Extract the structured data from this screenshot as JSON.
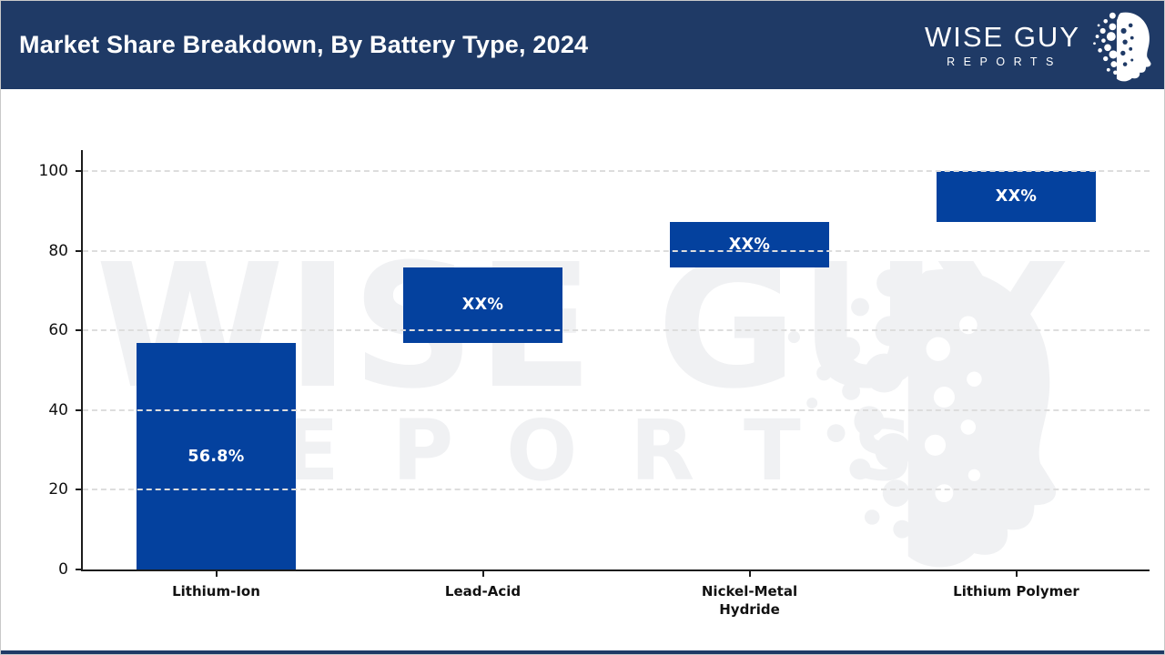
{
  "header": {
    "title": "Market Share Breakdown, By Battery Type, 2024",
    "logo": {
      "line1": "WISE GUY",
      "line2": "REPORTS"
    }
  },
  "watermark": {
    "line1": "WISE GUY",
    "line2": "REPORTS"
  },
  "colors": {
    "header_bg": "#1F3A66",
    "bar": "#04419E",
    "bar_label": "#FFFFFF",
    "grid": "#DDDDDD",
    "axis": "#1C1C1C",
    "watermark": "#F0F1F3",
    "footer_bg": "#1F3A66"
  },
  "chart_data": {
    "type": "bar",
    "subtype": "waterfall",
    "title": "Market Share Breakdown, By Battery Type, 2024",
    "categories": [
      "Lithium-Ion",
      "Lead-Acid",
      "Nickel-Metal Hydride",
      "Lithium Polymer"
    ],
    "segments": [
      {
        "category": "Lithium-Ion",
        "start": 0,
        "end": 56.8,
        "label": "56.8%"
      },
      {
        "category": "Lead-Acid",
        "start": 56.8,
        "end": 75.9,
        "label": "XX%"
      },
      {
        "category": "Nickel-Metal Hydride",
        "start": 75.9,
        "end": 87.3,
        "label": "XX%"
      },
      {
        "category": "Lithium Polymer",
        "start": 87.3,
        "end": 100,
        "label": "XX%"
      }
    ],
    "ylim": [
      0,
      100
    ],
    "yticks": [
      0,
      20,
      40,
      60,
      80,
      100
    ],
    "xlabel": "",
    "ylabel": "",
    "grid": {
      "horizontal": true,
      "style": "dashed",
      "above_bars": true
    },
    "legend": "none",
    "bar_color": "#04419E",
    "bar_label_color": "#FFFFFF"
  }
}
